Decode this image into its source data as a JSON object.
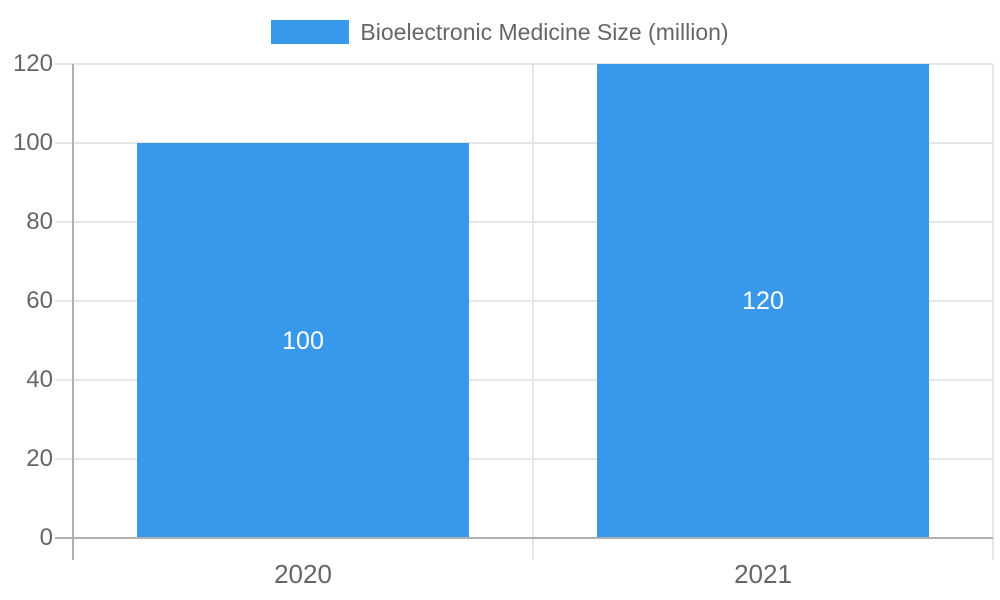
{
  "chart_data": {
    "type": "bar",
    "title": "Bioelectronic Medicine Size (million)",
    "legend": [
      "Bioelectronic Medicine Size (million)"
    ],
    "legend_position": "top",
    "categories": [
      "2020",
      "2021"
    ],
    "values": [
      100,
      120
    ],
    "bar_labels": [
      "100",
      "120"
    ],
    "xlabel": "",
    "ylabel": "",
    "ylim": [
      0,
      120
    ],
    "yticks": [
      0,
      20,
      40,
      60,
      80,
      100,
      120
    ],
    "grid": true,
    "colors": {
      "bar": "#3899ec",
      "grid_line": "#e6e6e6",
      "axis_line": "#b0b0b0",
      "tick_label": "#666666",
      "legend_text": "#666666",
      "bar_label_text": "#ffffff",
      "background": "#ffffff"
    }
  }
}
